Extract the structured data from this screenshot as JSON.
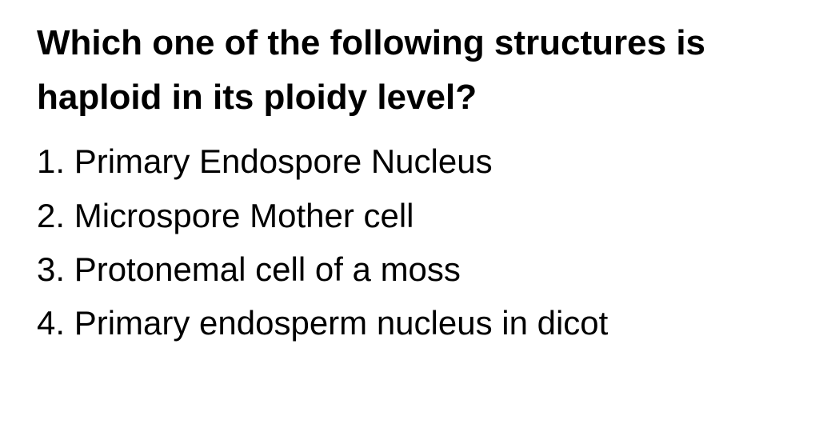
{
  "colors": {
    "background": "#ffffff",
    "text": "#000000"
  },
  "typography": {
    "font_family": "Comic Sans MS / handwritten",
    "question_fontsize_pt": 33,
    "option_fontsize_pt": 31,
    "question_weight": "bold",
    "option_weight": "normal"
  },
  "question": {
    "text": "Which one of the following structures is haploid in its ploidy level?"
  },
  "options": [
    {
      "number": "1.",
      "text": "Primary Endospore Nucleus"
    },
    {
      "number": "2.",
      "text": "Microspore Mother cell"
    },
    {
      "number": "3.",
      "text": "Protonemal cell of a moss"
    },
    {
      "number": "4.",
      "text": "Primary endosperm nucleus in dicot"
    }
  ]
}
